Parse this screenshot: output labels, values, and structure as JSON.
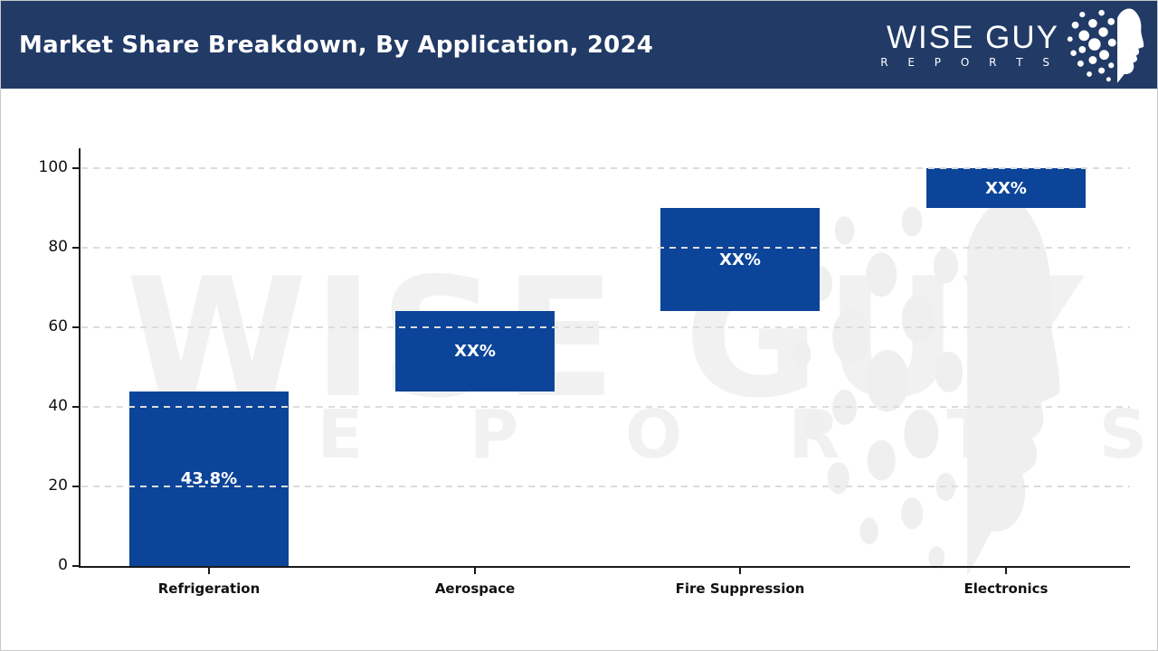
{
  "header": {
    "title": "Market Share Breakdown, By Application, 2024",
    "logo": {
      "line1": "WISE GUY",
      "line2": "R E P O R T S"
    }
  },
  "watermark": {
    "line1": "WISE GUY",
    "line2": "R E P O R T S"
  },
  "colors": {
    "header_bg": "#213a66",
    "bar": "#0b4499",
    "title_text": "#ffffff",
    "watermark": "#f1f1f1",
    "gridline": "#dcdcdc"
  },
  "chart_data": {
    "type": "bar",
    "subtype": "waterfall",
    "title": "Market Share Breakdown, By Application, 2024",
    "xlabel": "",
    "ylabel": "",
    "categories": [
      "Refrigeration",
      "Aerospace",
      "Fire Suppression",
      "Electronics"
    ],
    "segments": [
      {
        "category": "Refrigeration",
        "start": 0,
        "end": 43.8,
        "label": "43.8%"
      },
      {
        "category": "Aerospace",
        "start": 43.8,
        "end": 64,
        "label": "XX%"
      },
      {
        "category": "Fire Suppression",
        "start": 64,
        "end": 90,
        "label": "XX%"
      },
      {
        "category": "Electronics",
        "start": 90,
        "end": 100,
        "label": "XX%"
      }
    ],
    "ylim": [
      0,
      105
    ],
    "yticks": [
      0,
      20,
      40,
      60,
      80,
      100
    ],
    "grid": true,
    "legend": false
  }
}
